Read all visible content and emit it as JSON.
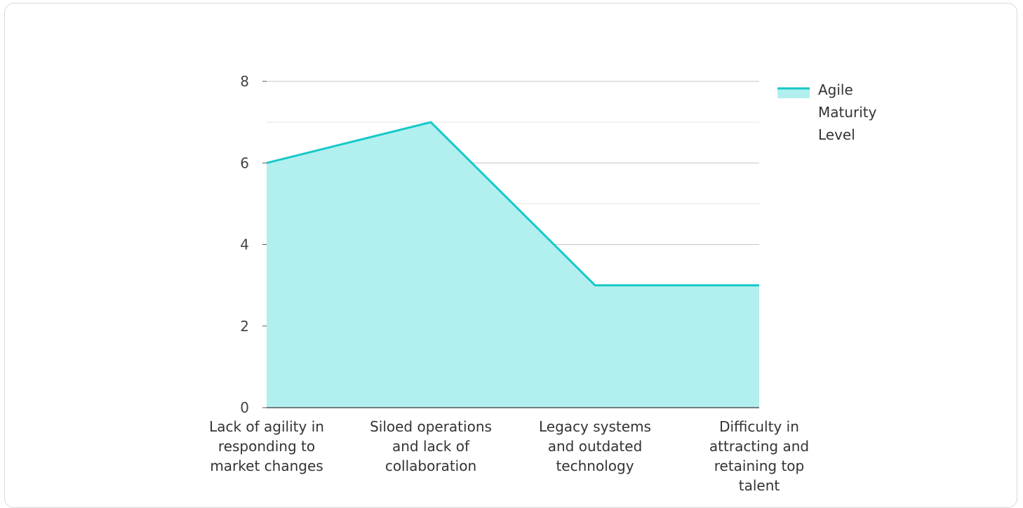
{
  "chart_data": {
    "type": "area",
    "categories": [
      "Lack of agility in responding to market changes",
      "Siloed operations and lack of collaboration",
      "Legacy systems and outdated technology",
      "Difficulty in attracting and retaining top talent"
    ],
    "category_lines": [
      [
        "Lack of agility in",
        "responding to",
        "market changes"
      ],
      [
        "Siloed operations",
        "and lack of",
        "collaboration"
      ],
      [
        "Legacy systems",
        "and outdated",
        "technology"
      ],
      [
        "Difficulty in",
        "attracting and",
        "retaining top",
        "talent"
      ]
    ],
    "series": [
      {
        "name": "Agile Maturity Level",
        "name_lines": [
          "Agile",
          "Maturity",
          "Level"
        ],
        "values": [
          6,
          7,
          3,
          3
        ]
      }
    ],
    "ylim": [
      0,
      8
    ],
    "yticks": [
      0,
      2,
      4,
      6,
      8
    ],
    "grid": true,
    "legend_position": "top-right",
    "colors": {
      "line": "#16c9c9",
      "fill": "#b2efef",
      "grid_major": "#c4c4c4",
      "grid_minor": "#e3e3e3",
      "axis": "#555555"
    }
  }
}
